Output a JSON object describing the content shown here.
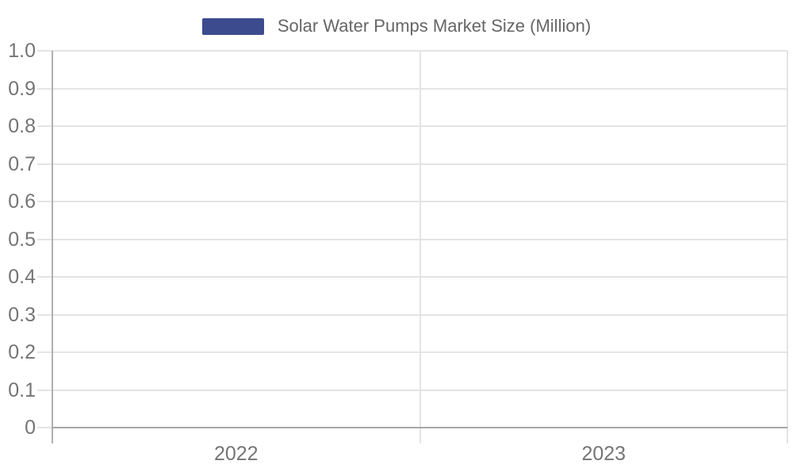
{
  "legend": {
    "items": [
      {
        "label": "Solar Water Pumps Market Size (Million)",
        "color": "#3B4B8E"
      }
    ]
  },
  "chart_data": {
    "type": "bar",
    "title": "Solar Water Pumps Market Size (Million)",
    "categories": [
      "2022",
      "2023"
    ],
    "series": [
      {
        "name": "Solar Water Pumps Market Size (Million)",
        "color": "#3B4B8E",
        "values": [
          null,
          null
        ]
      }
    ],
    "xlabel": "",
    "ylabel": "",
    "ylim": [
      0,
      1
    ],
    "yticks": [
      "0",
      "0.1",
      "0.2",
      "0.3",
      "0.4",
      "0.5",
      "0.6",
      "0.7",
      "0.8",
      "0.9",
      "1.0"
    ],
    "grid": true,
    "legend_position": "top-center"
  },
  "colors": {
    "background": "#ffffff",
    "grid_line": "#e4e4e4",
    "axis_line": "#b0b0b0",
    "zero_line": "#a6a6a6",
    "axis_label": "#757575",
    "legend_text": "#666666",
    "series_1": "#3B4B8E"
  }
}
